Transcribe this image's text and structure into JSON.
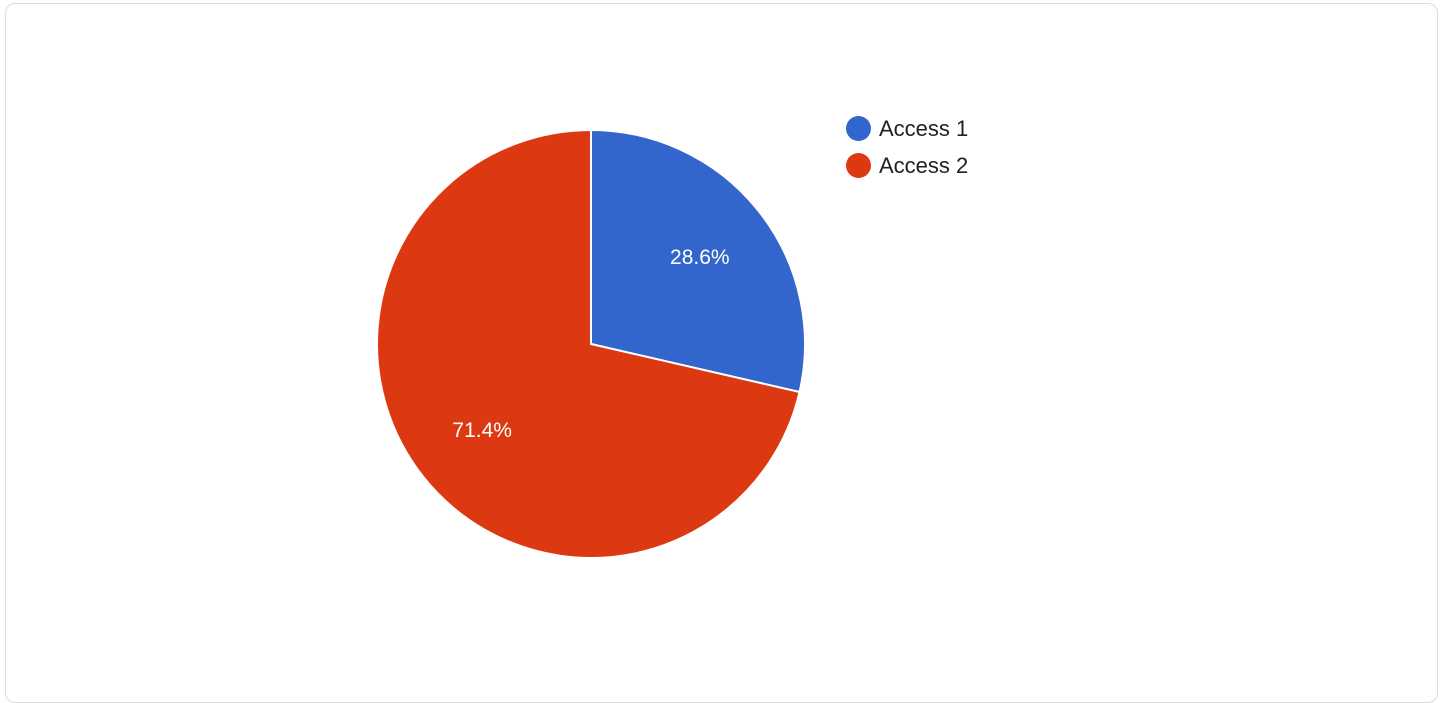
{
  "chart_data": {
    "type": "pie",
    "categories": [
      "Access 1",
      "Access 2"
    ],
    "values": [
      28.6,
      71.4
    ],
    "data_labels": [
      "28.6%",
      "71.4%"
    ],
    "colors": [
      "#3366cc",
      "#dc3912"
    ],
    "start_angle_deg": 0,
    "direction": "clockwise",
    "legend_position": "top-right"
  },
  "legend": {
    "items": [
      {
        "label": "Access 1",
        "color": "#3366cc"
      },
      {
        "label": "Access 2",
        "color": "#dc3912"
      }
    ]
  }
}
